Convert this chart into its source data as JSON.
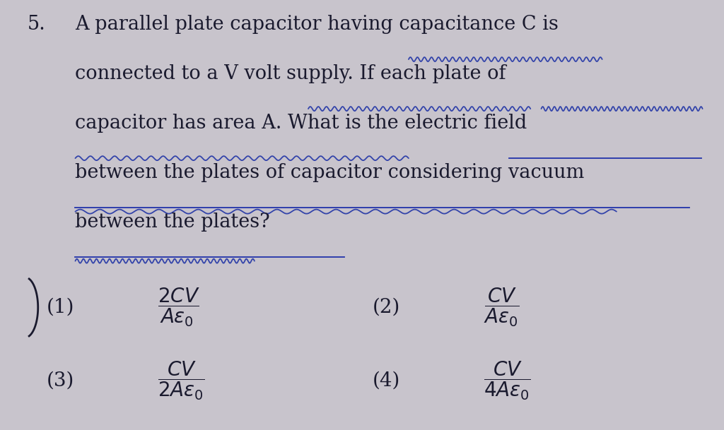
{
  "background_color": "#c8c4cc",
  "question_number": "5.",
  "question_text_lines": [
    "A parallel plate capacitor having capacitance C is",
    "connected to a V volt supply. If each plate of",
    "capacitor has area A. What is the electric field",
    "between the plates of capacitor considering vacuum",
    "between the plates?"
  ],
  "options": [
    {
      "label": "(1)",
      "math": "$\\dfrac{2CV}{A\\varepsilon_0}$"
    },
    {
      "label": "(2)",
      "math": "$\\dfrac{CV}{A\\varepsilon_0}$"
    },
    {
      "label": "(3)",
      "math": "$\\dfrac{CV}{2A\\varepsilon_0}$"
    },
    {
      "label": "(4)",
      "math": "$\\dfrac{CV}{4A\\varepsilon_0}$"
    }
  ],
  "text_color": "#1a1a2e",
  "font_size_question": 19.5,
  "font_size_options_label": 20,
  "font_size_options_math": 20,
  "wavy_color": "#3344aa",
  "straight_color": "#2233aa"
}
